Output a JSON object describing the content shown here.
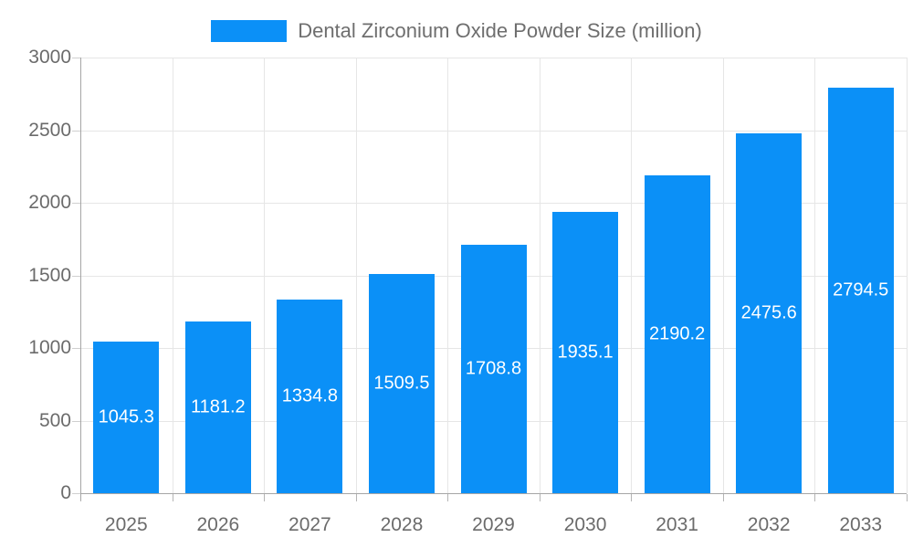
{
  "legend": {
    "label": "Dental Zirconium Oxide Powder Size (million)",
    "swatch_color": "#0b90f7"
  },
  "colors": {
    "bar": "#0b90f7",
    "bar_label": "#ffffff",
    "grid": "#e6e6e6",
    "axis_line": "#a6a6a6",
    "axis_text": "#6b6b6b",
    "legend_text": "#6e6e6e"
  },
  "chart_data": {
    "type": "bar",
    "title": "Dental Zirconium Oxide Powder Size (million)",
    "categories": [
      "2025",
      "2026",
      "2027",
      "2028",
      "2029",
      "2030",
      "2031",
      "2032",
      "2033"
    ],
    "values": [
      1045.3,
      1181.2,
      1334.8,
      1509.5,
      1708.8,
      1935.1,
      2190.2,
      2475.6,
      2794.5
    ],
    "value_labels": [
      "1045.3",
      "1181.2",
      "1334.8",
      "1509.5",
      "1708.8",
      "1935.1",
      "2190.2",
      "2475.6",
      "2794.5"
    ],
    "xlabel": "",
    "ylabel": "",
    "ylim": [
      0,
      3000
    ],
    "yticks": [
      0,
      500,
      1000,
      1500,
      2000,
      2500,
      3000
    ],
    "grid": true,
    "legend_position": "top-center",
    "value_label_position": "inside-center"
  }
}
